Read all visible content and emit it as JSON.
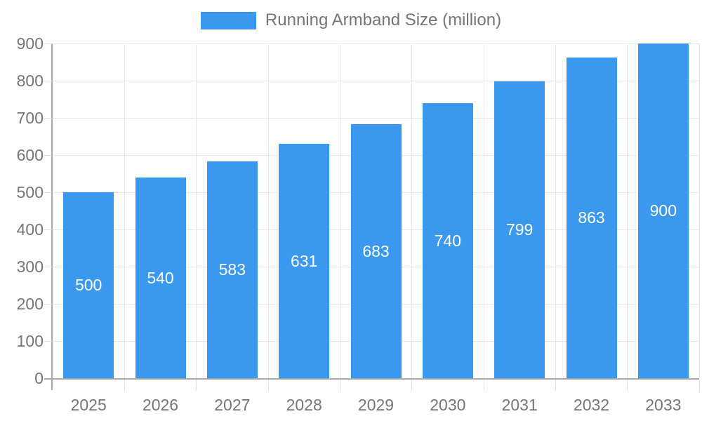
{
  "chart_data": {
    "type": "bar",
    "title": "Running Armband Size (million)",
    "categories": [
      "2025",
      "2026",
      "2027",
      "2028",
      "2029",
      "2030",
      "2031",
      "2032",
      "2033"
    ],
    "series": [
      {
        "name": "Running Armband Size (million)",
        "values": [
          500,
          540,
          583,
          631,
          683,
          740,
          799,
          863,
          900
        ]
      }
    ],
    "xlabel": "",
    "ylabel": "",
    "ylim": [
      0,
      900
    ],
    "ytick_step": 100,
    "ytick_labels": [
      "0",
      "100",
      "200",
      "300",
      "400",
      "500",
      "600",
      "700",
      "800",
      "900"
    ],
    "grid": true,
    "legend_position": "top",
    "value_labels_shown": true,
    "colors": {
      "bar": "#3a98ee",
      "bar_value_text": "#ffffff",
      "axis_text": "#757575",
      "gridline": "#e6e6e6",
      "axis_line": "#a9a9a9",
      "tick": "#e0e0e0",
      "background": "#ffffff"
    }
  }
}
